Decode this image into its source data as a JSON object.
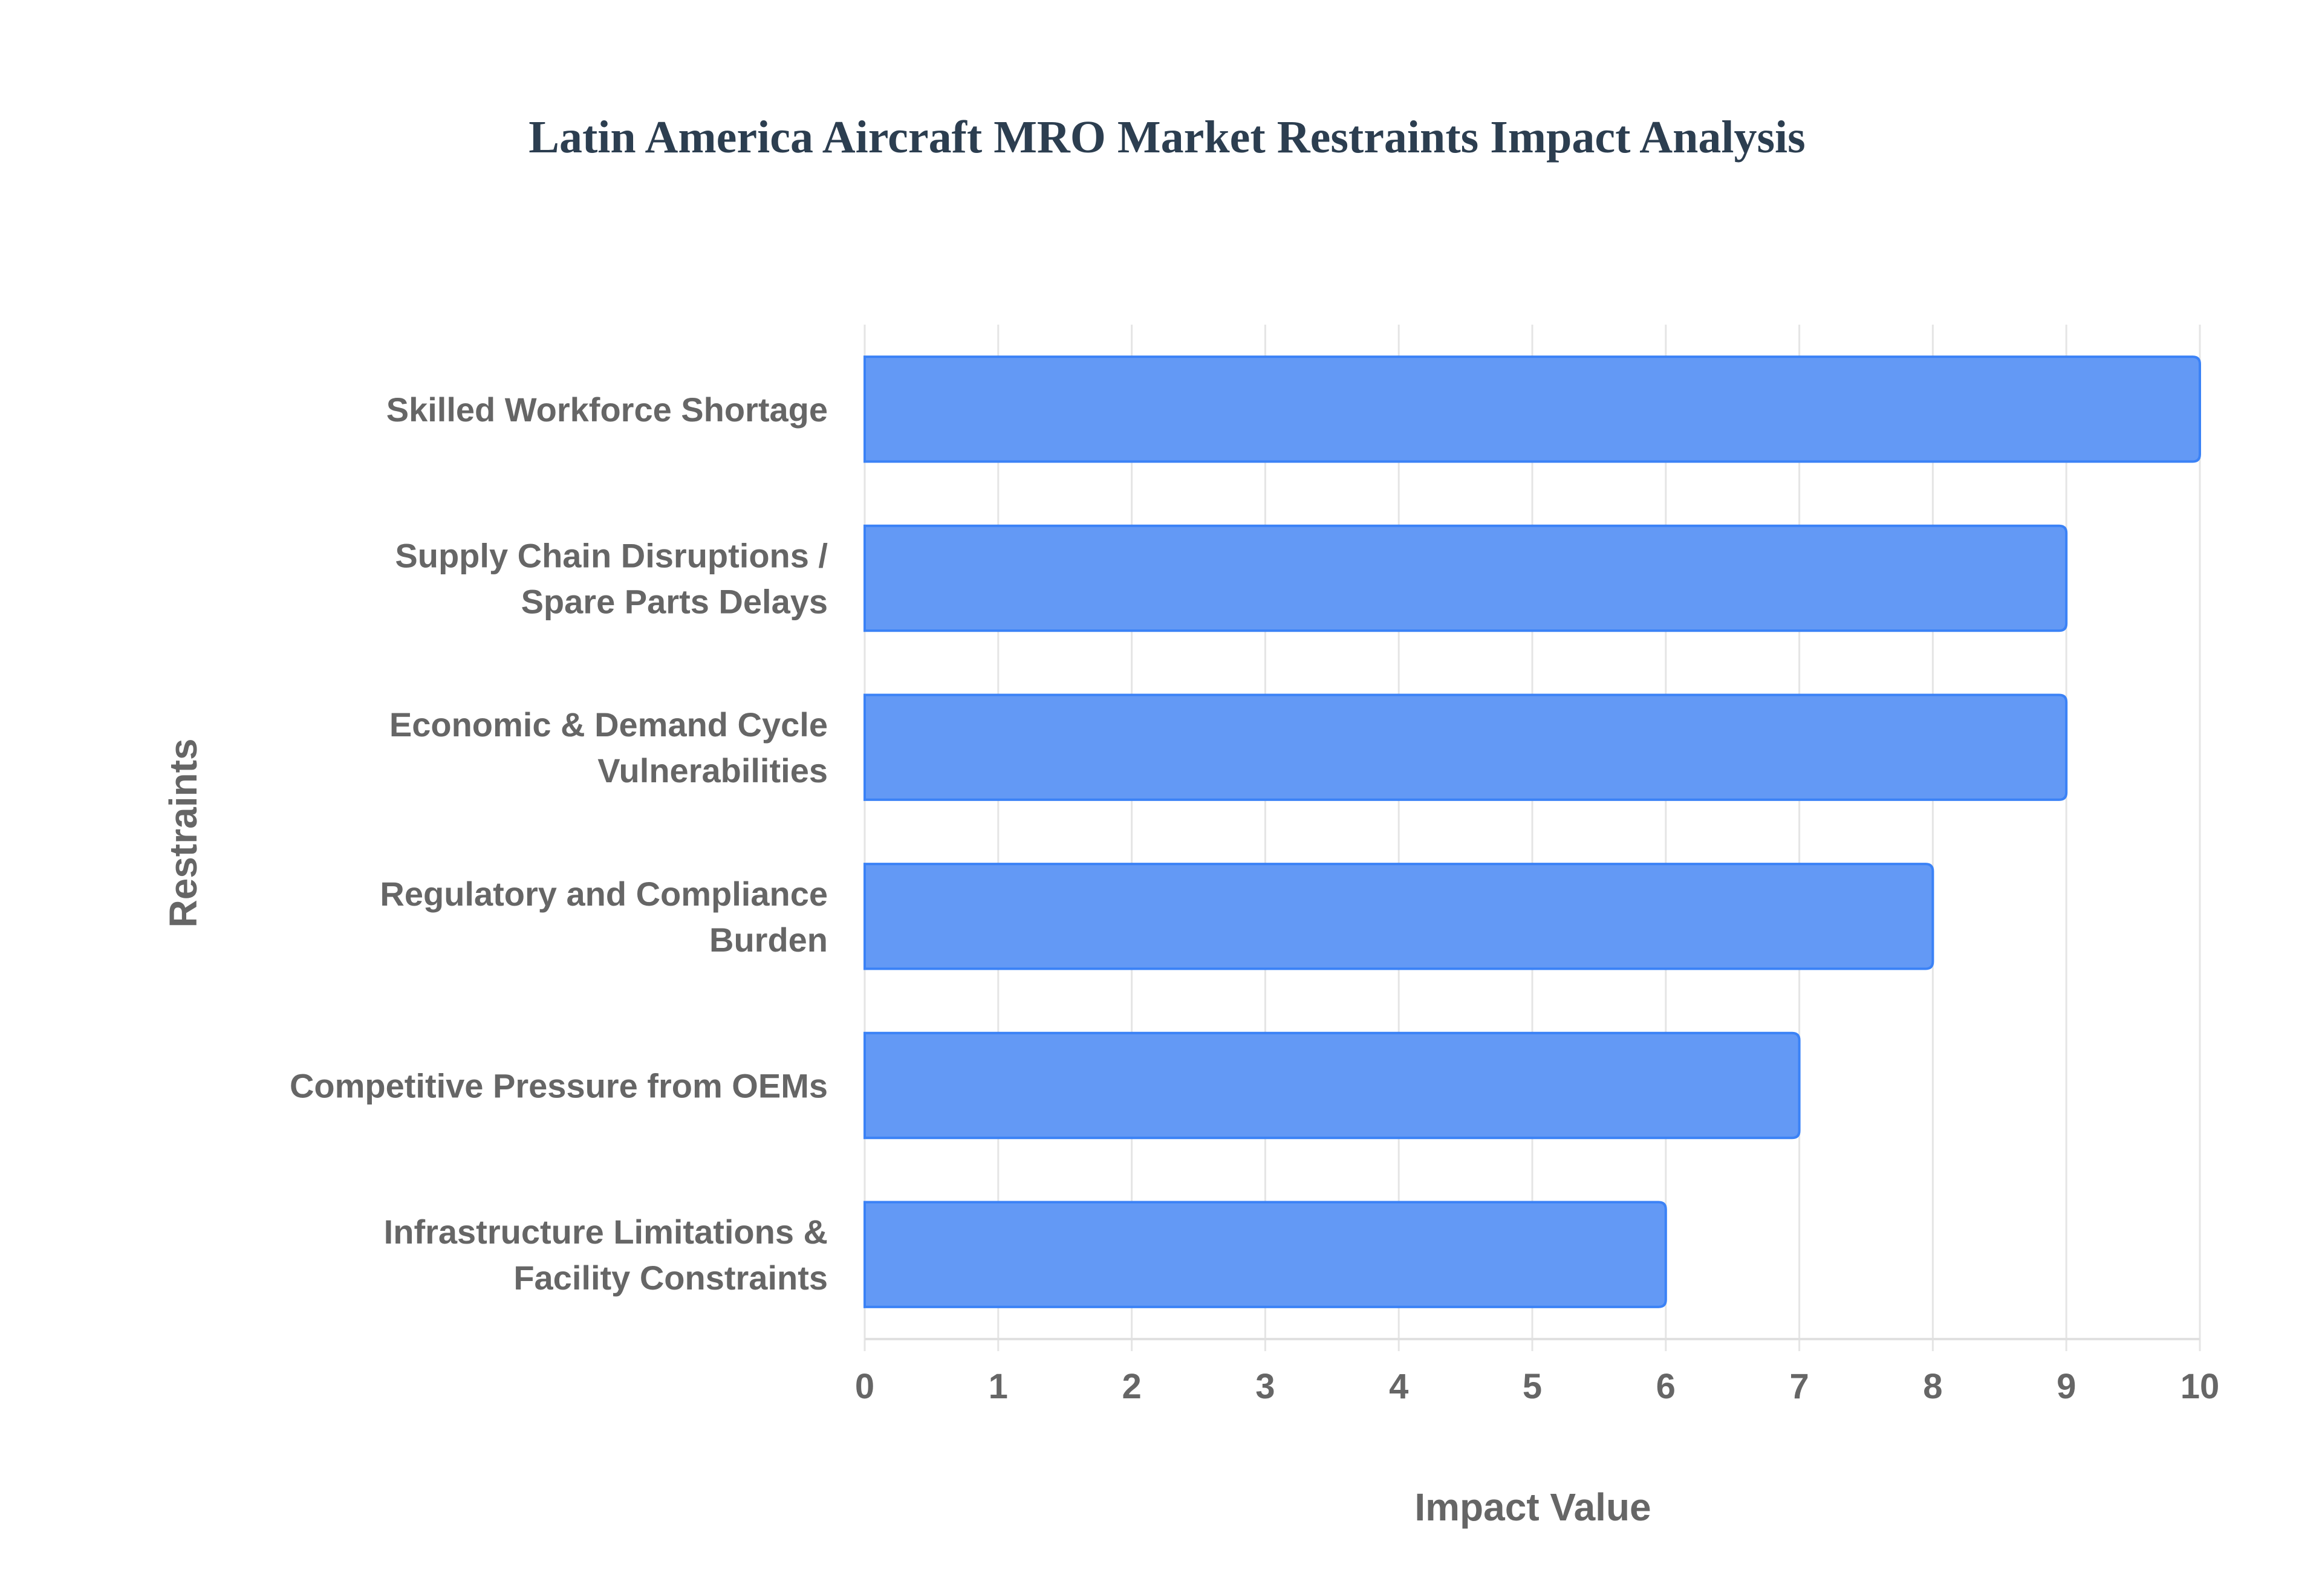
{
  "chart_data": {
    "type": "bar",
    "orientation": "horizontal",
    "title": "Latin America Aircraft MRO Market Restraints Impact Analysis",
    "xlabel": "Impact Value",
    "ylabel": "Restraints",
    "categories": [
      [
        "Skilled Workforce Shortage"
      ],
      [
        "Supply Chain Disruptions /",
        "Spare Parts Delays"
      ],
      [
        "Economic & Demand Cycle",
        "Vulnerabilities"
      ],
      [
        "Regulatory and Compliance",
        "Burden"
      ],
      [
        "Competitive Pressure from OEMs"
      ],
      [
        "Infrastructure Limitations &",
        "Facility Constraints"
      ]
    ],
    "values": [
      10,
      9,
      9,
      8,
      7,
      6
    ],
    "xlim": [
      0,
      10
    ],
    "xticks": [
      "0",
      "1",
      "2",
      "3",
      "4",
      "5",
      "6",
      "7",
      "8",
      "9",
      "10"
    ],
    "grid": true,
    "bar_color": "#6399f5",
    "bar_border_color": "#3b82f6"
  }
}
